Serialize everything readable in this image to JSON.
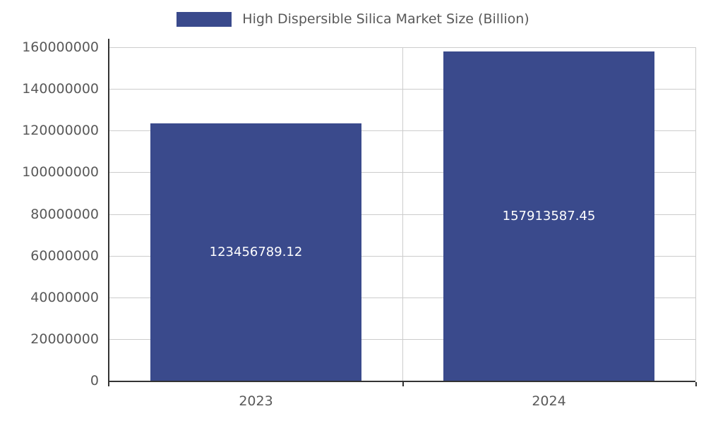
{
  "chart_data": {
    "type": "bar",
    "title": "High Dispersible Silica Market Size (Billion)",
    "categories": [
      "2023",
      "2024"
    ],
    "values": [
      123456789.12,
      157913587.45
    ],
    "value_labels": [
      "123456789.12",
      "157913587.45"
    ],
    "ylim": [
      0,
      160000000
    ],
    "ytick_step": 20000000,
    "ytick_labels": [
      "0",
      "20000000",
      "40000000",
      "60000000",
      "80000000",
      "100000000",
      "120000000",
      "140000000",
      "160000000"
    ],
    "grid": true,
    "legend_position": "top",
    "bar_width_ratio": 0.72,
    "colors": {
      "bar": "#3A4A8C",
      "label_text": "#ffffff",
      "axis_text": "#595959",
      "gridline": "#cccccc",
      "axis_line": "#333333"
    }
  }
}
